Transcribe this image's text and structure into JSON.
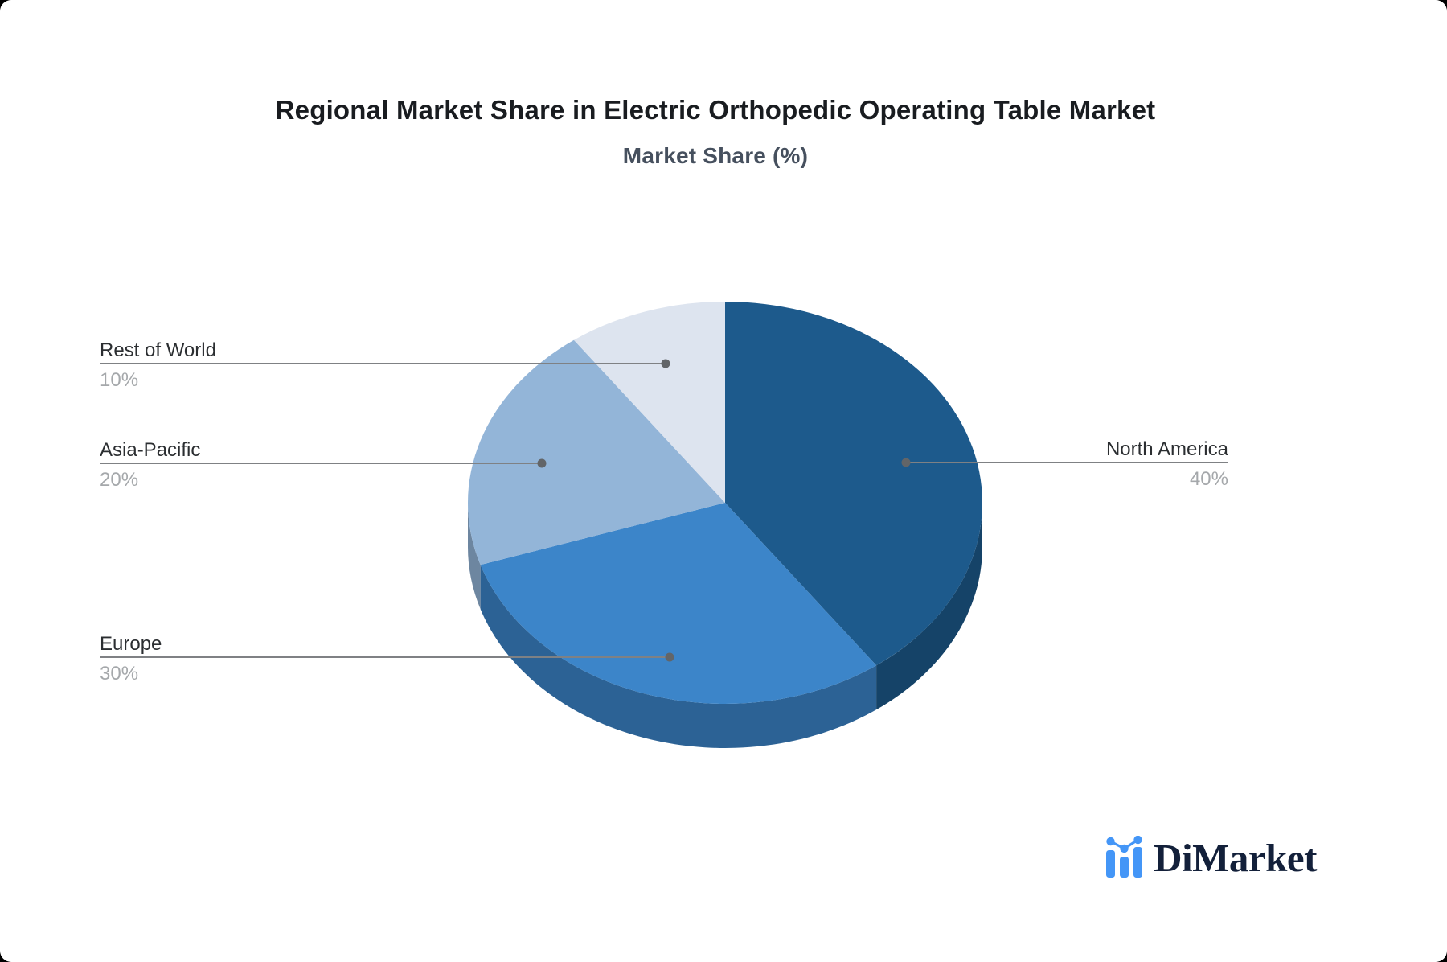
{
  "chart": {
    "title": "Regional Market Share in Electric Orthopedic Operating Table Market",
    "subtitle": "Market Share (%)"
  },
  "chart_data": {
    "type": "pie",
    "title": "Regional Market Share in Electric Orthopedic Operating Table Market",
    "subtitle": "Market Share (%)",
    "unit": "%",
    "start_angle_deg": 0,
    "direction": "clockwise",
    "effect": "3d-depth",
    "legend_position": "callout-labels",
    "slices": [
      {
        "label": "North America",
        "value": 40,
        "display": "40%",
        "color": "#1d5a8c"
      },
      {
        "label": "Europe",
        "value": 30,
        "display": "30%",
        "color": "#3c85c9"
      },
      {
        "label": "Asia-Pacific",
        "value": 20,
        "display": "20%",
        "color": "#93b5d8"
      },
      {
        "label": "Rest of World",
        "value": 10,
        "display": "10%",
        "color": "#dde4ef"
      }
    ]
  },
  "branding": {
    "logo_text": "DiMarket",
    "logo_icon": "bar-line-chart-icon",
    "logo_text_color": "#13203a",
    "logo_icon_color": "#4496f7"
  },
  "style_colors": {
    "leader_line": "#7f8184",
    "leader_dot": "#626568",
    "label_text": "#2b2e31",
    "value_text": "#a5a8ab",
    "title_text": "#191c20",
    "subtitle_text": "#46505e",
    "background": "#ffffff"
  }
}
